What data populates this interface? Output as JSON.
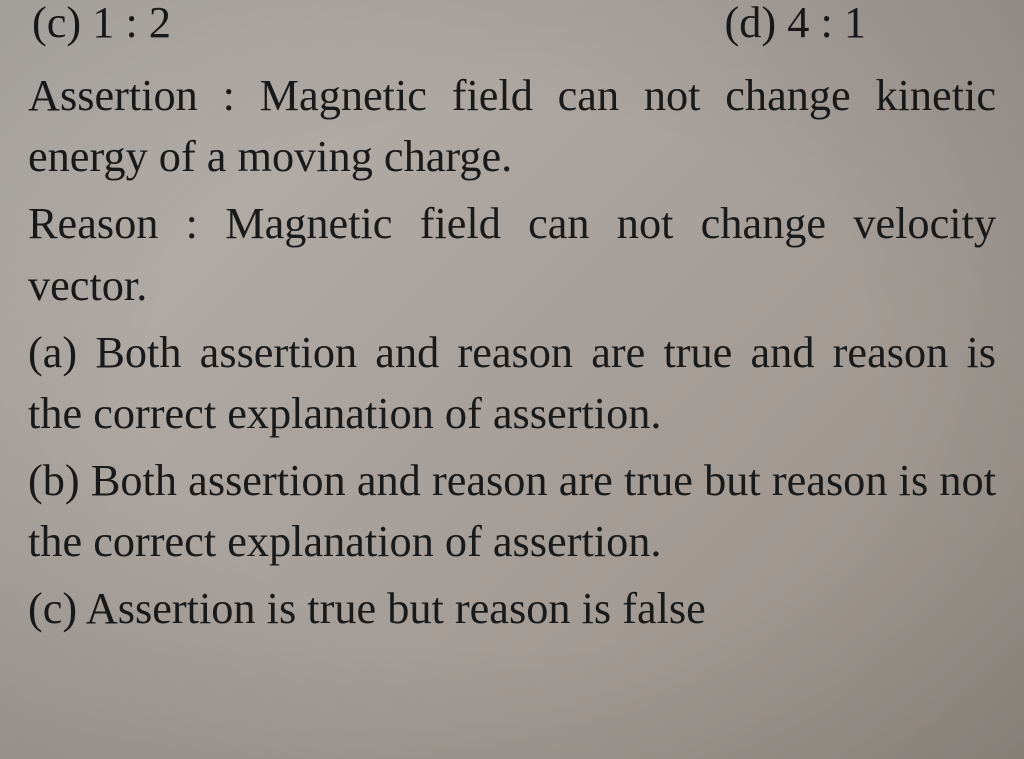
{
  "typography": {
    "font_family": "Georgia, Times New Roman, serif",
    "font_size_pt": 33,
    "line_height": 1.38,
    "text_color": "#1a1a1a",
    "background_color": "#a8a09a",
    "text_align": "justify"
  },
  "top_options": {
    "left": "(c) 1 : 2",
    "right": "(d) 4 : 1"
  },
  "assertion": {
    "label": "Assertion",
    "text": "Magnetic field can not change kinetic energy of a moving charge."
  },
  "reason": {
    "label": "Reason",
    "text": "Magnetic field can not change velocity vector."
  },
  "options": {
    "a": "(a) Both assertion and reason are true and reason is the correct explanation of assertion.",
    "b": "(b) Both assertion and reason are true but reason is not the correct explanation of assertion.",
    "c": "(c) Assertion is true but reason is false"
  }
}
